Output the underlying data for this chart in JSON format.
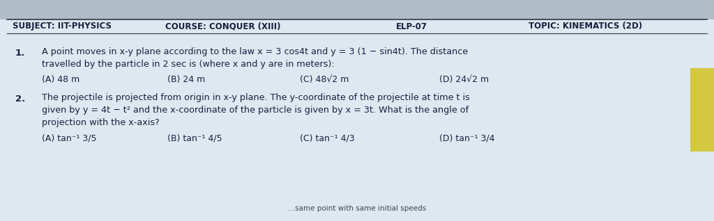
{
  "bg_top_color": "#b8c8d8",
  "paper_color": "#dde8f0",
  "text_color": "#1a2040",
  "header": {
    "subject": "SUBJECT: IIT-PHYSICS",
    "course": "COURSE: CONQUER (XIII)",
    "elp": "ELP-07",
    "topic": "TOPIC: KINEMATICS (2D)"
  },
  "q1_number": "1.",
  "q1_text_line1": "A point moves in x-y plane according to the law x = 3 cos4t and y = 3 (1 − sin4t). The distance",
  "q1_text_line2": "travelled by the particle in 2 sec is (where x and y are in meters):",
  "q1_options": [
    "(A) 48 m",
    "(B) 24 m",
    "(C) 48√2 m",
    "(D) 24√2 m"
  ],
  "q2_number": "2.",
  "q2_text_line1": "The projectile is projected from origin in x-y plane. The y-coordinate of the projectile at time t is",
  "q2_text_line2": "given by y = 4t − t² and the x-coordinate of the particle is given by x = 3t. What is the angle of",
  "q2_text_line3": "projection with the x-axis?",
  "q2_options": [
    "(A) tan⁻¹ 3/5",
    "(B) tan⁻¹ 4/5",
    "(C) tan⁻¹ 4/3",
    "(D) tan⁻¹ 3/4"
  ],
  "bottom_text": "...same point with same initial speeds",
  "header_fontsize": 8.5,
  "body_fontsize": 9.2,
  "number_fontsize": 9.5,
  "option_fontsize": 9.0
}
